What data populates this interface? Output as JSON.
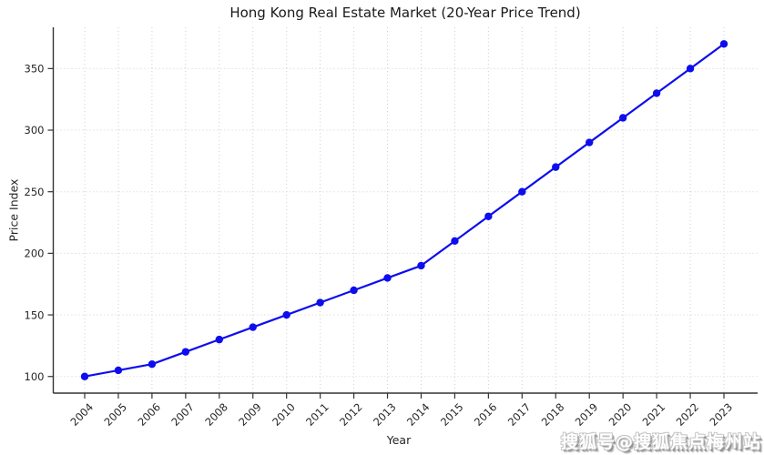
{
  "page": {
    "background": "#ffffff"
  },
  "watermark": {
    "text": "搜狐号@搜狐焦点梅州站"
  },
  "chart_data": {
    "type": "line",
    "title": "Hong Kong Real Estate Market (20-Year Price Trend)",
    "xlabel": "Year",
    "ylabel": "Price Index",
    "categories": [
      "2004",
      "2005",
      "2006",
      "2007",
      "2008",
      "2009",
      "2010",
      "2011",
      "2012",
      "2013",
      "2014",
      "2015",
      "2016",
      "2017",
      "2018",
      "2019",
      "2020",
      "2021",
      "2022",
      "2023"
    ],
    "values": [
      100,
      105,
      110,
      120,
      130,
      140,
      150,
      160,
      170,
      180,
      190,
      210,
      230,
      250,
      270,
      290,
      310,
      330,
      350,
      370
    ],
    "yticks": [
      100,
      150,
      200,
      250,
      300,
      350
    ],
    "ylim": [
      86.5,
      383.5
    ],
    "grid": true,
    "grid_style": "dotted",
    "legend_position": "none",
    "line_color": "#0d0dee",
    "marker": "circle",
    "grid_color": "#cfcfcf",
    "axis_color": "#333333",
    "tick_label_color": "#262626",
    "x_tick_rotation_deg": 45
  }
}
